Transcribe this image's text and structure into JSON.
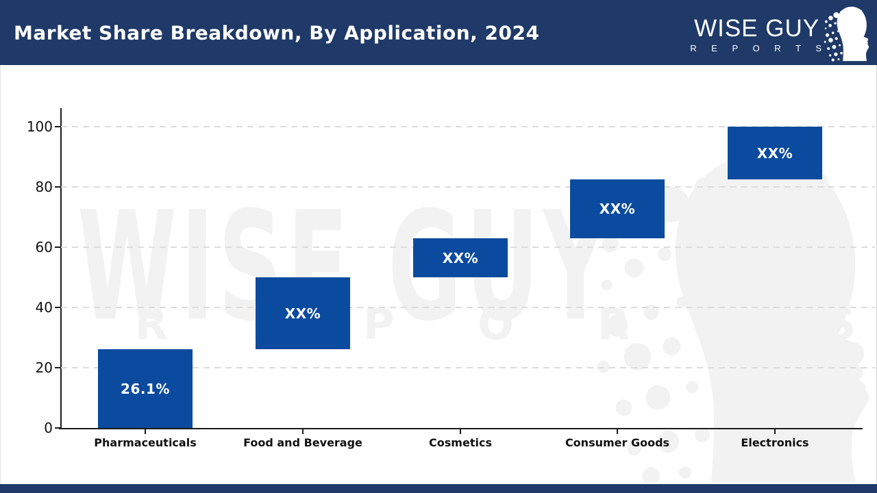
{
  "header": {
    "title": "Market Share Breakdown, By Application, 2024",
    "logo_line1": "WISE GUY",
    "logo_line2": "R E P O R T S"
  },
  "watermark": {
    "line1": "WISE GUY",
    "line2": "R E P O R T S"
  },
  "colors": {
    "header_bg": "#1f3a68",
    "bar": "#0b4b9f",
    "grid": "#dcdcdc",
    "axis": "#1a1a1a",
    "bar_label_text": "#ffffff",
    "watermark": "#f2f2f2"
  },
  "chart_data": {
    "type": "bar",
    "subtype": "waterfall",
    "title": "Market Share Breakdown, By Application, 2024",
    "categories": [
      "Pharmaceuticals",
      "Food and Beverage",
      "Cosmetics",
      "Consumer Goods",
      "Electronics"
    ],
    "segments": [
      {
        "category": "Pharmaceuticals",
        "start": 0,
        "end": 26.1,
        "label": "26.1%"
      },
      {
        "category": "Food and Beverage",
        "start": 26.1,
        "end": 50.0,
        "label": "XX%"
      },
      {
        "category": "Cosmetics",
        "start": 50.0,
        "end": 62.9,
        "label": "XX%"
      },
      {
        "category": "Consumer Goods",
        "start": 62.9,
        "end": 82.4,
        "label": "XX%"
      },
      {
        "category": "Electronics",
        "start": 82.4,
        "end": 100.0,
        "label": "XX%"
      }
    ],
    "yticks": [
      0,
      20,
      40,
      60,
      80,
      100
    ],
    "ylim": [
      0,
      105
    ],
    "xlabel": "",
    "ylabel": "",
    "grid": "horizontal-dashed",
    "legend": "none"
  }
}
